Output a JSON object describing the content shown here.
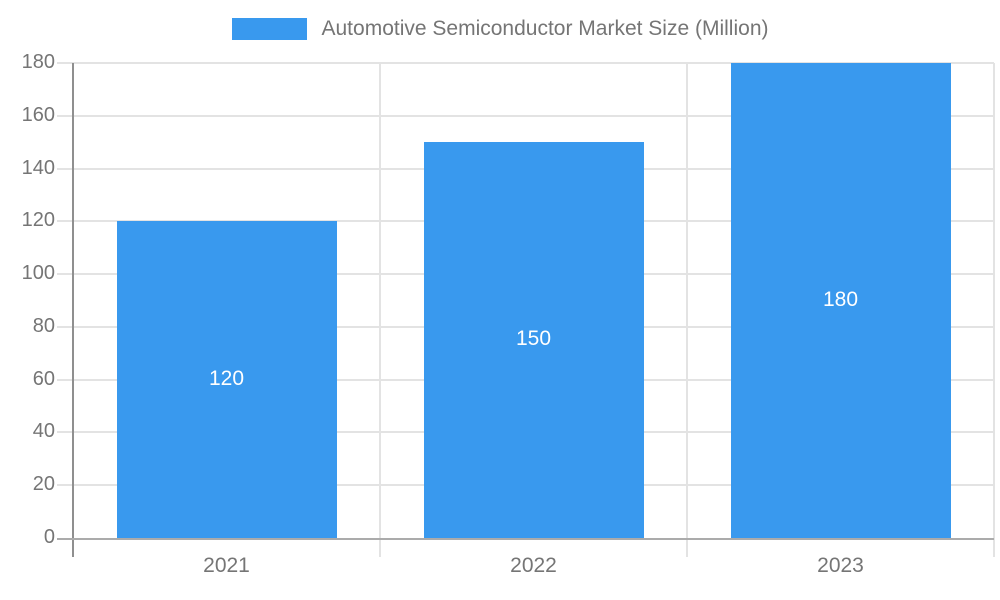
{
  "chart_data": {
    "type": "bar",
    "title": "Automotive Semiconductor Market Size (Million)",
    "legend": {
      "position": "top",
      "entries": [
        {
          "label": "Automotive Semiconductor Market Size (Million)",
          "color": "#3999EE"
        }
      ]
    },
    "categories": [
      "2021",
      "2022",
      "2023"
    ],
    "series": [
      {
        "name": "Automotive Semiconductor Market Size (Million)",
        "values": [
          120,
          150,
          180
        ]
      }
    ],
    "value_labels": [
      "120",
      "150",
      "180"
    ],
    "xlabel": "",
    "ylabel": "",
    "ylim": [
      0,
      180
    ],
    "yticks": [
      0,
      20,
      40,
      60,
      80,
      100,
      120,
      140,
      160,
      180
    ],
    "grid": true,
    "colors": {
      "bar": "#3999EE",
      "value_label": "#FFFFFF",
      "axis_text": "#757575",
      "gridline": "#E3E3E3",
      "axis_line_y": "#8F8F8F",
      "axis_line_x": "#ABABAB",
      "background": "#FFFFFF"
    }
  }
}
